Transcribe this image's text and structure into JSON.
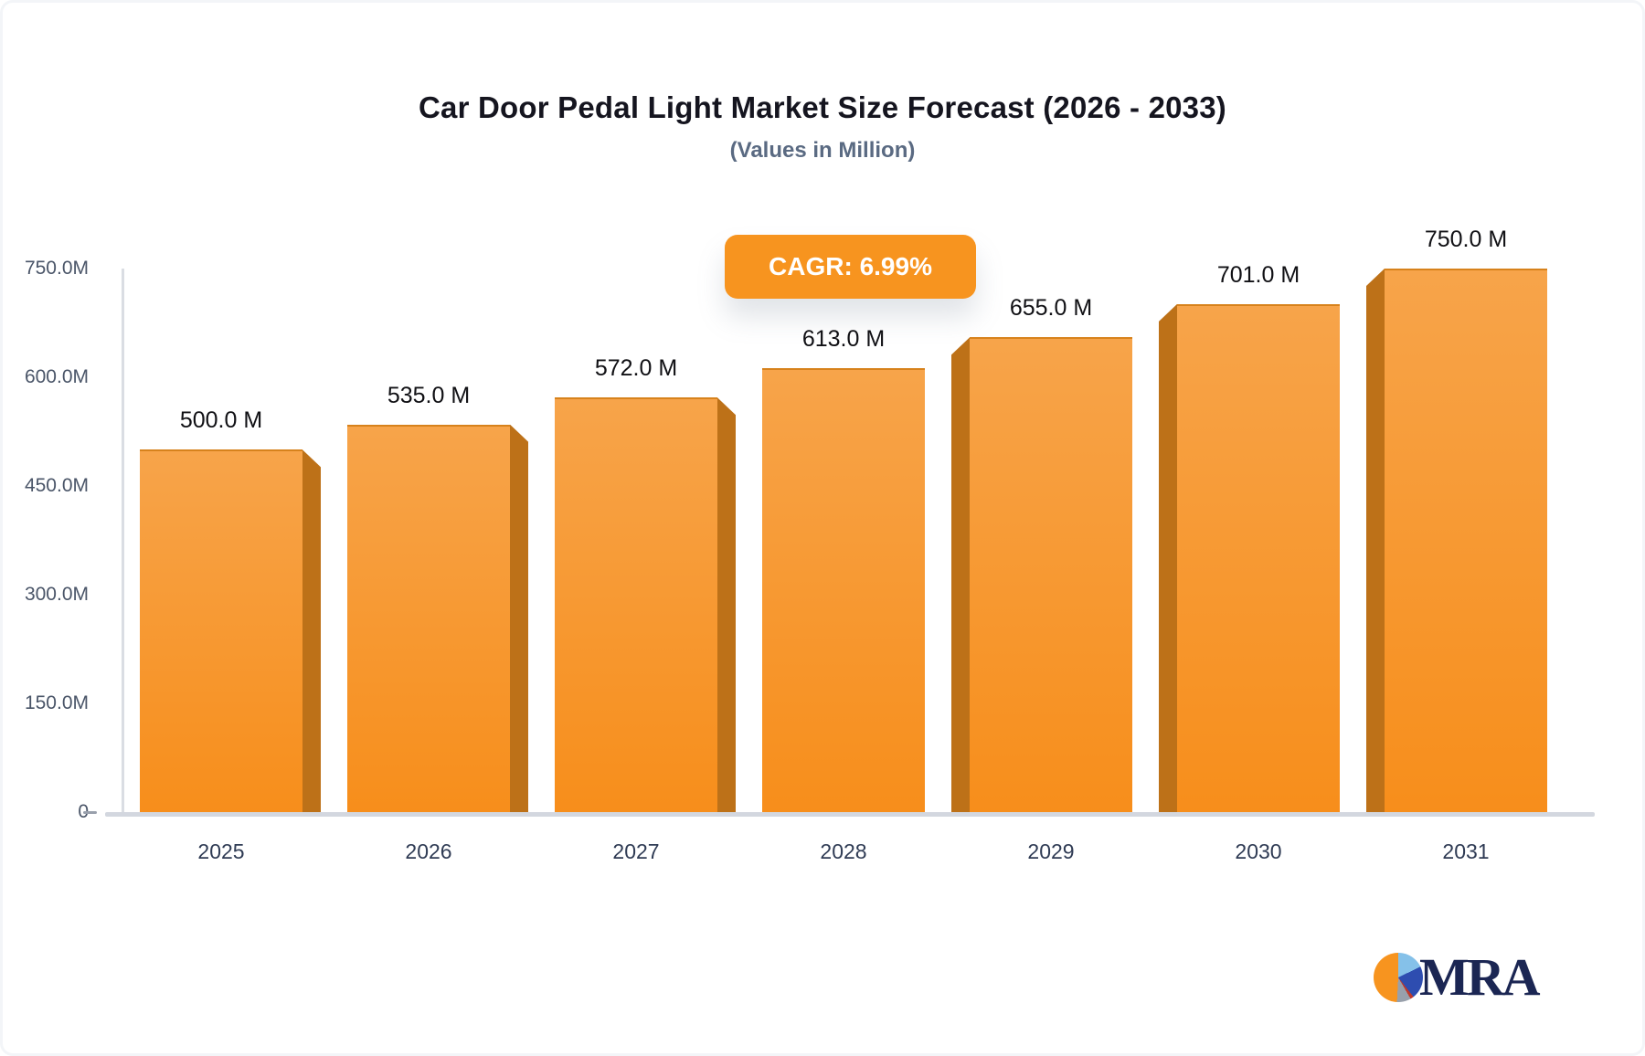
{
  "header": {
    "title": "Car Door Pedal Light Market Size Forecast (2026 - 2033)",
    "subtitle": "(Values in Million)"
  },
  "badge": {
    "label": "CAGR: 6.99%",
    "bg_color": "#F7941F",
    "text_color": "#FFFFFF"
  },
  "chart_data": {
    "type": "bar",
    "title": "Car Door Pedal Light Market Size Forecast (2026 - 2033)",
    "subtitle": "(Values in Million)",
    "xlabel": "",
    "ylabel": "",
    "categories": [
      "2025",
      "2026",
      "2027",
      "2028",
      "2029",
      "2030",
      "2031"
    ],
    "values": [
      500,
      535,
      572,
      613,
      655,
      701,
      750
    ],
    "value_labels": [
      "500.0 M",
      "535.0 M",
      "572.0 M",
      "613.0 M",
      "655.0 M",
      "701.0 M",
      "750.0 M"
    ],
    "unit": "Million",
    "ylim": [
      0,
      750
    ],
    "grid": false,
    "legend": "none",
    "y_ticks": [
      {
        "label": "750.0M",
        "value": 750
      },
      {
        "label": "600.0M",
        "value": 600
      },
      {
        "label": "450.0M",
        "value": 450
      },
      {
        "label": "300.0M",
        "value": 300
      },
      {
        "label": "150.0M",
        "value": 150
      },
      {
        "label": "0",
        "value": 0
      }
    ],
    "colors": {
      "bar_gradient_top": "#F7A44A",
      "bar_gradient_bottom": "#F78E1B",
      "bar_side_shadow": "#BD7118",
      "axis_line": "#DADDE3",
      "baseline": "#D3D7DF",
      "value_label": "#101014",
      "y_tick_label": "#4A5568",
      "x_tick_label": "#2F3B54"
    }
  },
  "logo": {
    "text": "MRA",
    "text_color": "#1B2653",
    "pie_slices": {
      "light_blue": "#85C1E9",
      "dark_blue": "#2E4DB0",
      "red": "#C0392B",
      "gray": "#98A0AB",
      "orange": "#F7941F"
    }
  }
}
